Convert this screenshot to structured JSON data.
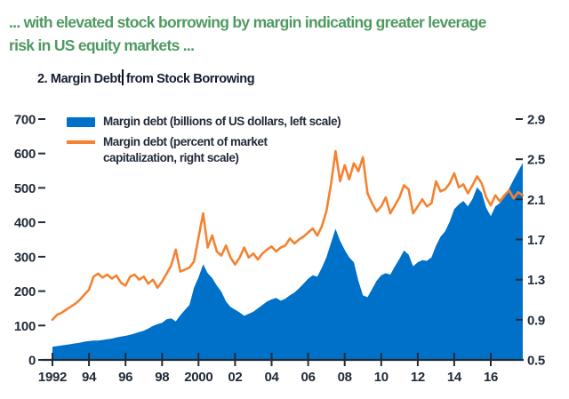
{
  "header": {
    "caption_line1": "... with elevated stock borrowing by margin indicating greater leverage",
    "caption_line2": "risk in US equity markets ...",
    "chart_title_part1": "2. Margin Debt",
    "chart_title_part2": "from Stock Borrowing"
  },
  "colors": {
    "caption_green": "#4f9a61",
    "ink_navy": "#222b38",
    "area_blue": "#0071c9",
    "line_orange": "#f58230",
    "background": "#ffffff"
  },
  "chart_data": {
    "type": "combo",
    "title": "2. Margin Debt from Stock Borrowing",
    "grid": false,
    "legend_position": "top-left",
    "x_years": [
      1992,
      1992.25,
      1992.5,
      1992.75,
      1993,
      1993.25,
      1993.5,
      1993.75,
      1994,
      1994.25,
      1994.5,
      1994.75,
      1995,
      1995.25,
      1995.5,
      1995.75,
      1996,
      1996.25,
      1996.5,
      1996.75,
      1997,
      1997.25,
      1997.5,
      1997.75,
      1998,
      1998.25,
      1998.5,
      1998.75,
      1999,
      1999.25,
      1999.5,
      1999.75,
      2000,
      2000.25,
      2000.5,
      2000.75,
      2001,
      2001.25,
      2001.5,
      2001.75,
      2002,
      2002.25,
      2002.5,
      2002.75,
      2003,
      2003.25,
      2003.5,
      2003.75,
      2004,
      2004.25,
      2004.5,
      2004.75,
      2005,
      2005.25,
      2005.5,
      2005.75,
      2006,
      2006.25,
      2006.5,
      2006.75,
      2007,
      2007.25,
      2007.5,
      2007.75,
      2008,
      2008.25,
      2008.5,
      2008.75,
      2009,
      2009.25,
      2009.5,
      2009.75,
      2010,
      2010.25,
      2010.5,
      2010.75,
      2011,
      2011.25,
      2011.5,
      2011.75,
      2012,
      2012.25,
      2012.5,
      2012.75,
      2013,
      2013.25,
      2013.5,
      2013.75,
      2014,
      2014.25,
      2014.5,
      2014.75,
      2015,
      2015.25,
      2015.5,
      2015.75,
      2016,
      2016.25,
      2016.5,
      2016.75,
      2017,
      2017.25,
      2017.5,
      2017.75
    ],
    "series": [
      {
        "name": "Margin debt (billions of US dollars, left scale)",
        "type": "area",
        "axis": "left",
        "color": "#0071c9",
        "values": [
          38,
          40,
          42,
          44,
          46,
          48,
          50,
          53,
          55,
          56,
          56,
          58,
          60,
          62,
          65,
          68,
          70,
          73,
          77,
          81,
          85,
          91,
          99,
          104,
          108,
          118,
          121,
          112,
          130,
          145,
          160,
          210,
          240,
          278,
          252,
          238,
          216,
          198,
          170,
          154,
          146,
          138,
          128,
          134,
          140,
          150,
          160,
          170,
          176,
          180,
          172,
          178,
          188,
          196,
          208,
          222,
          236,
          246,
          242,
          268,
          298,
          340,
          381,
          346,
          320,
          298,
          284,
          230,
          188,
          182,
          206,
          230,
          246,
          252,
          248,
          272,
          294,
          318,
          306,
          272,
          284,
          290,
          288,
          298,
          332,
          358,
          374,
          402,
          438,
          452,
          462,
          446,
          468,
          502,
          486,
          442,
          418,
          446,
          456,
          472,
          498,
          524,
          548,
          573
        ]
      },
      {
        "name": "Margin debt (percent of market capitalization, right scale)",
        "type": "line",
        "axis": "right",
        "color": "#f58230",
        "values": [
          0.9,
          0.95,
          0.97,
          1.0,
          1.03,
          1.06,
          1.1,
          1.15,
          1.2,
          1.33,
          1.36,
          1.32,
          1.35,
          1.31,
          1.34,
          1.27,
          1.24,
          1.33,
          1.35,
          1.3,
          1.33,
          1.26,
          1.3,
          1.22,
          1.28,
          1.36,
          1.44,
          1.6,
          1.38,
          1.4,
          1.42,
          1.48,
          1.72,
          1.96,
          1.62,
          1.74,
          1.58,
          1.54,
          1.64,
          1.52,
          1.45,
          1.52,
          1.62,
          1.52,
          1.56,
          1.5,
          1.56,
          1.6,
          1.63,
          1.58,
          1.62,
          1.64,
          1.71,
          1.66,
          1.7,
          1.73,
          1.77,
          1.81,
          1.74,
          1.83,
          1.98,
          2.25,
          2.58,
          2.28,
          2.44,
          2.3,
          2.46,
          2.38,
          2.52,
          2.16,
          2.06,
          1.98,
          2.03,
          2.12,
          1.96,
          2.04,
          2.12,
          2.24,
          2.2,
          1.96,
          2.03,
          2.1,
          2.03,
          2.06,
          2.28,
          2.18,
          2.2,
          2.26,
          2.36,
          2.22,
          2.25,
          2.16,
          2.24,
          2.33,
          2.26,
          2.12,
          2.04,
          2.14,
          2.08,
          2.14,
          2.19,
          2.11,
          2.17,
          2.14
        ]
      }
    ],
    "left_axis": {
      "ticks": [
        "0",
        "100",
        "200",
        "300",
        "400",
        "500",
        "600",
        "700"
      ],
      "values": [
        0,
        100,
        200,
        300,
        400,
        500,
        600,
        700
      ],
      "range": [
        0,
        700
      ]
    },
    "right_axis": {
      "ticks": [
        "0.5",
        "0.9",
        "1.3",
        "1.7",
        "2.1",
        "2.5",
        "2.9"
      ],
      "values": [
        0.5,
        0.9,
        1.3,
        1.7,
        2.1,
        2.5,
        2.9
      ],
      "range": [
        0.5,
        2.9
      ]
    },
    "x_axis": {
      "tick_labels": [
        "1992",
        "94",
        "96",
        "98",
        "2000",
        "02",
        "04",
        "06",
        "08",
        "10",
        "12",
        "14",
        "16"
      ],
      "tick_years": [
        1992,
        1994,
        1996,
        1998,
        2000,
        2002,
        2004,
        2006,
        2008,
        2010,
        2012,
        2014,
        2016
      ],
      "range": [
        1992,
        2017.8
      ]
    }
  }
}
